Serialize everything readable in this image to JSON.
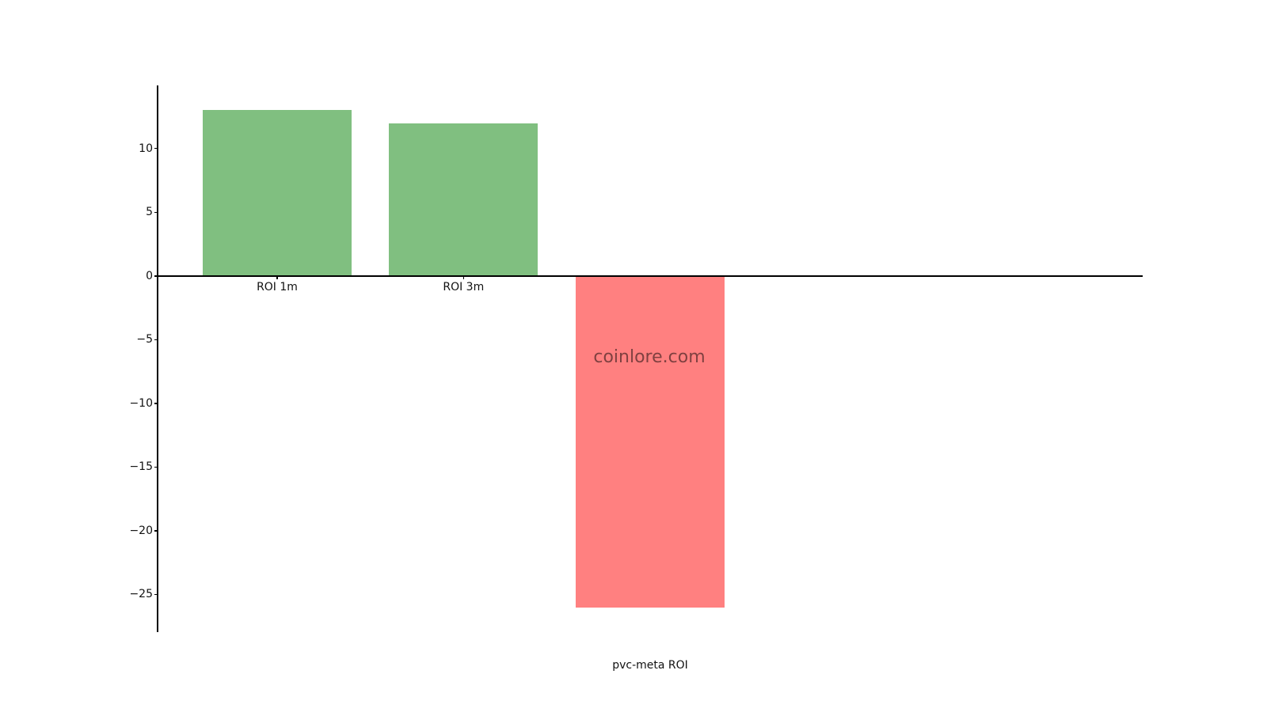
{
  "watermark": {
    "text": "coinlore.com",
    "color": "rgba(0,0,0,0.5)"
  },
  "chart_data": {
    "type": "bar",
    "categories": [
      "ROI 1m",
      "ROI 3m",
      ""
    ],
    "values": [
      13,
      12,
      -26
    ],
    "bar_colors": [
      "#80bf80",
      "#80bf80",
      "#ff8080"
    ],
    "positive_color": "#80bf80",
    "negative_color": "#ff8080",
    "xlabel": "pvc-meta ROI",
    "ylabel": "",
    "yticks": [
      10,
      5,
      0,
      -5,
      -10,
      -15,
      -20,
      -25
    ],
    "ytick_labels": [
      "10",
      "5",
      "0",
      "−5",
      "−10",
      "−15",
      "−20",
      "−25"
    ],
    "ylim": [
      -27.95,
      14.95
    ],
    "grid": false,
    "legend_position": "none",
    "axis_color": "#000000"
  }
}
